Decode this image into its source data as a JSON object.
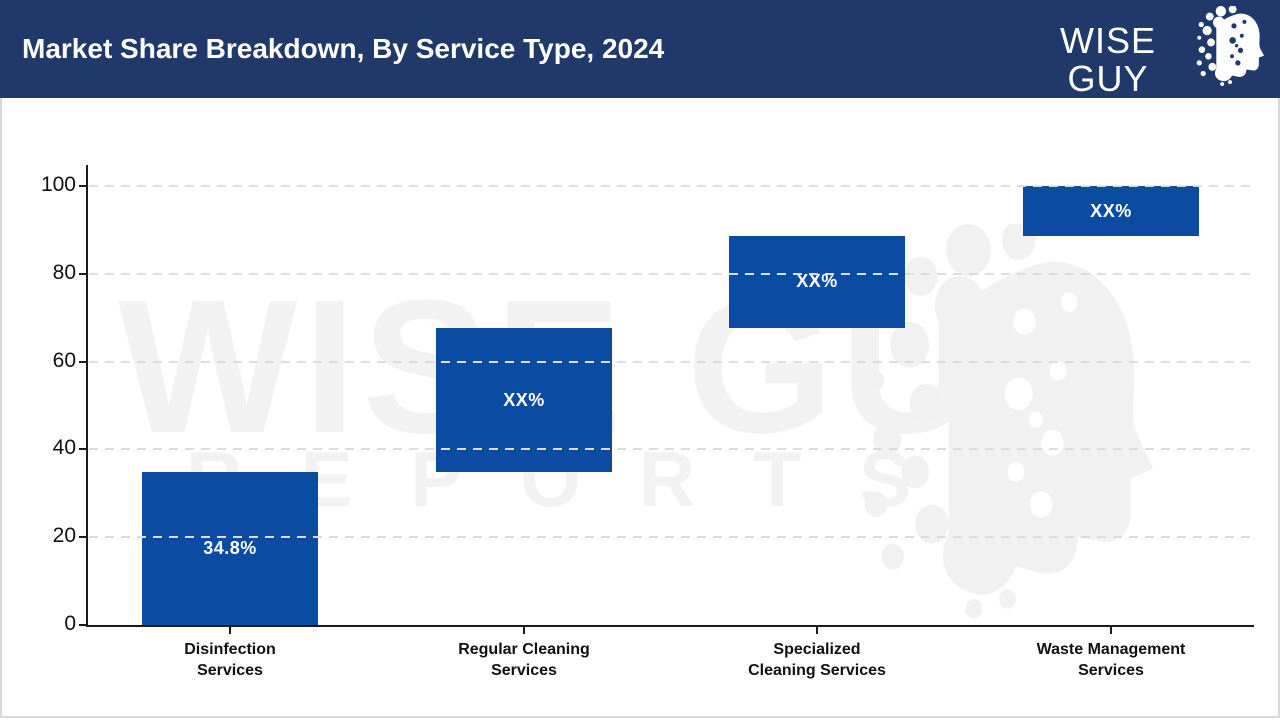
{
  "header": {
    "title": "Market Share Breakdown, By Service Type, 2024",
    "logo_line1": "WISE GUY",
    "logo_line2": "REPORTS",
    "bg_color": "#21386B"
  },
  "watermark": {
    "line1": "WISE GUY",
    "line2": "REPORTS"
  },
  "chart_data": {
    "type": "bar",
    "subtype": "floating-segment-waterfall",
    "title": "Market Share Breakdown, By Service Type, 2024",
    "categories": [
      "Disinfection\nServices",
      "Regular Cleaning\nServices",
      "Specialized\nCleaning Services",
      "Waste Management\nServices"
    ],
    "segments": [
      {
        "category": "Disinfection Services",
        "start": 0,
        "end": 34.8,
        "label": "34.8%"
      },
      {
        "category": "Regular Cleaning Services",
        "start": 34.8,
        "end": 67.7,
        "label": "XX%"
      },
      {
        "category": "Specialized Cleaning Services",
        "start": 67.7,
        "end": 88.6,
        "label": "XX%"
      },
      {
        "category": "Waste Management Services",
        "start": 88.6,
        "end": 100,
        "label": "XX%"
      }
    ],
    "yticks": [
      0,
      20,
      40,
      60,
      80,
      100
    ],
    "ylim": [
      0,
      100
    ],
    "xlabel": "",
    "ylabel": "",
    "grid": "horizontal-dashed",
    "legend": "none",
    "bar_color": "#0B4BA1",
    "bar_label_color": "#FFFFFF",
    "axis_color": "#1a1a1a"
  }
}
